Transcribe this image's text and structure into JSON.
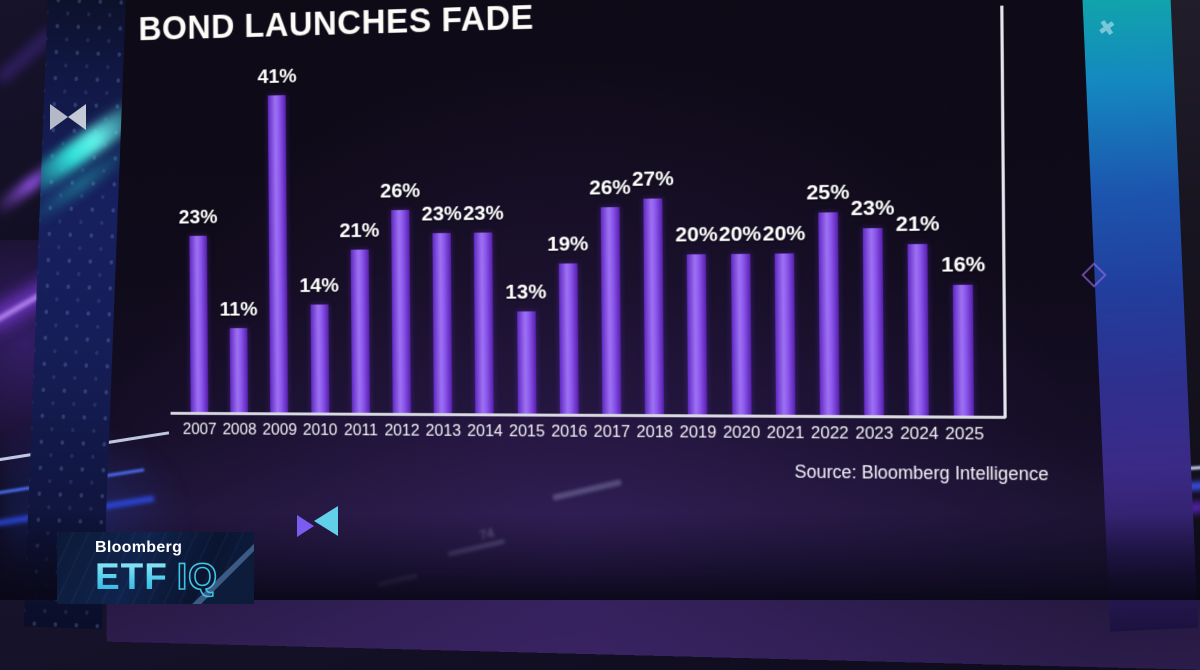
{
  "chart_data": {
    "type": "bar",
    "title": "BOND LAUNCHES FADE",
    "categories": [
      "2007",
      "2008",
      "2009",
      "2010",
      "2011",
      "2012",
      "2013",
      "2014",
      "2015",
      "2016",
      "2017",
      "2018",
      "2019",
      "2020",
      "2021",
      "2022",
      "2023",
      "2024",
      "2025"
    ],
    "values": [
      23,
      11,
      41,
      14,
      21,
      26,
      23,
      23,
      13,
      19,
      26,
      27,
      20,
      20,
      20,
      25,
      23,
      21,
      16
    ],
    "unit": "%",
    "xlabel": "",
    "ylabel": "",
    "ylim": [
      0,
      45
    ],
    "grid": false,
    "legend": "none",
    "value_labels_position": "above bars",
    "source": "Source: Bloomberg Intelligence",
    "bar_color": "#8a4df0",
    "value_label_color": "#ffffff",
    "background_color": "#0e0a16"
  },
  "branding": {
    "network_name": "Bloomberg",
    "show_primary": "ETF",
    "show_secondary": "IQ"
  },
  "decor": {
    "reflection_text": "74",
    "icons": {
      "left_panel": "bowtie-play-icon",
      "screen_bottom": "bowtie-play-icon",
      "right_panel_top": "pinwheel-x-icon",
      "right_panel_bottom": "diamond-outline-icon"
    }
  },
  "colors": {
    "bar_purple": "#8a4df0",
    "accent_cyan": "#45c8e8",
    "studio_blue": "#1a2468",
    "axis_line": "#e4e4ec"
  }
}
